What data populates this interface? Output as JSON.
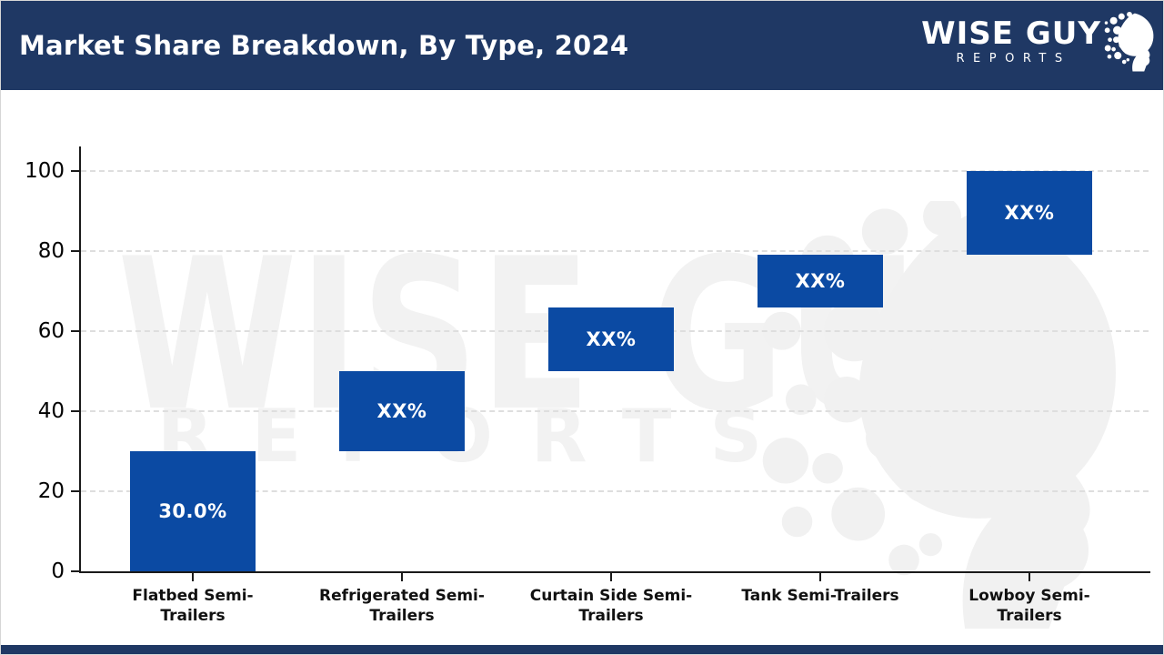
{
  "header": {
    "title": "Market Share Breakdown, By Type, 2024",
    "bg_color": "#1F3864",
    "logo": {
      "line1": "WISE GUY",
      "line2": "REPORTS"
    }
  },
  "watermark": {
    "line1": "WISE GUY",
    "line2": "REPORTS"
  },
  "colors": {
    "bar": "#0B4AA3",
    "header_bg": "#1F3864",
    "grid": "#DEDEDE",
    "axis": "#1A1A1A",
    "bar_label": "#FFFFFF",
    "watermark": "#F2F2F2"
  },
  "chart_data": {
    "type": "bar",
    "subtype": "waterfall",
    "title": "Market Share Breakdown, By Type, 2024",
    "categories": [
      "Flatbed Semi-Trailers",
      "Refrigerated Semi-Trailers",
      "Curtain Side Semi-Trailers",
      "Tank Semi-Trailers",
      "Lowboy Semi-Trailers"
    ],
    "category_lines": [
      [
        "Flatbed Semi-",
        "Trailers"
      ],
      [
        "Refrigerated Semi-",
        "Trailers"
      ],
      [
        "Curtain Side Semi-",
        "Trailers"
      ],
      [
        "Tank Semi-Trailers"
      ],
      [
        "Lowboy Semi-",
        "Trailers"
      ]
    ],
    "segments": [
      {
        "category": "Flatbed Semi-Trailers",
        "start": 0,
        "end": 30,
        "label": "30.0%"
      },
      {
        "category": "Refrigerated Semi-Trailers",
        "start": 30,
        "end": 50,
        "label": "XX%"
      },
      {
        "category": "Curtain Side Semi-Trailers",
        "start": 50,
        "end": 66,
        "label": "XX%"
      },
      {
        "category": "Tank Semi-Trailers",
        "start": 66,
        "end": 79,
        "label": "XX%"
      },
      {
        "category": "Lowboy Semi-Trailers",
        "start": 79,
        "end": 100,
        "label": "XX%"
      }
    ],
    "ylabel": "",
    "xlabel": "",
    "yticks": [
      0,
      20,
      40,
      60,
      80,
      100
    ],
    "ylim": [
      0,
      106
    ],
    "grid": "horizontal-dashed",
    "legend": "none"
  }
}
